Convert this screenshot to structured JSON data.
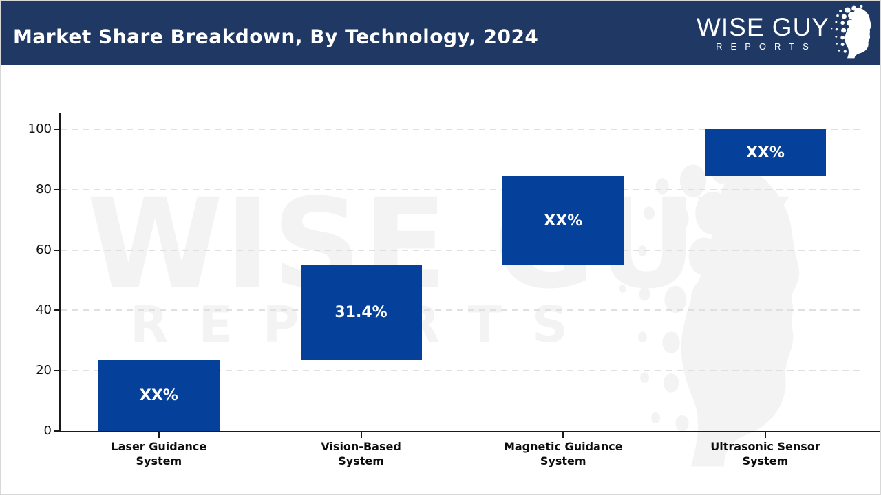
{
  "header": {
    "title": "Market Share Breakdown, By Technology, 2024",
    "logo": {
      "line1": "WISE GUY",
      "line2": "REPORTS"
    }
  },
  "watermark": {
    "line1": "WISE GUY",
    "line2": "REPORTS"
  },
  "chart_data": {
    "type": "bar",
    "subtype": "floating-waterfall",
    "title": "Market Share Breakdown, By Technology, 2024",
    "categories": [
      [
        "Laser Guidance",
        "System"
      ],
      [
        "Vision-Based",
        "System"
      ],
      [
        "Magnetic Guidance",
        "System"
      ],
      [
        "Ultrasonic Sensor",
        "System"
      ]
    ],
    "segments": [
      {
        "category": "Laser Guidance System",
        "start": 0,
        "end": 23.5,
        "label": "XX%"
      },
      {
        "category": "Vision-Based System",
        "start": 23.5,
        "end": 54.9,
        "label": "31.4%"
      },
      {
        "category": "Magnetic Guidance System",
        "start": 54.9,
        "end": 84.4,
        "label": "XX%"
      },
      {
        "category": "Ultrasonic Sensor System",
        "start": 84.4,
        "end": 100,
        "label": "XX%"
      }
    ],
    "yticks": [
      0,
      20,
      40,
      60,
      80,
      100
    ],
    "ylim": [
      0,
      105.5
    ],
    "xlabel": "",
    "ylabel": "",
    "grid": "horizontal-dashed",
    "legend": "none",
    "colors": {
      "bar": "#05409a",
      "header_bg": "#1f3864",
      "grid": "#e0e0e0",
      "axis": "#1a1a1a",
      "watermark": "#f3f3f3",
      "bar_label": "#ffffff"
    }
  }
}
